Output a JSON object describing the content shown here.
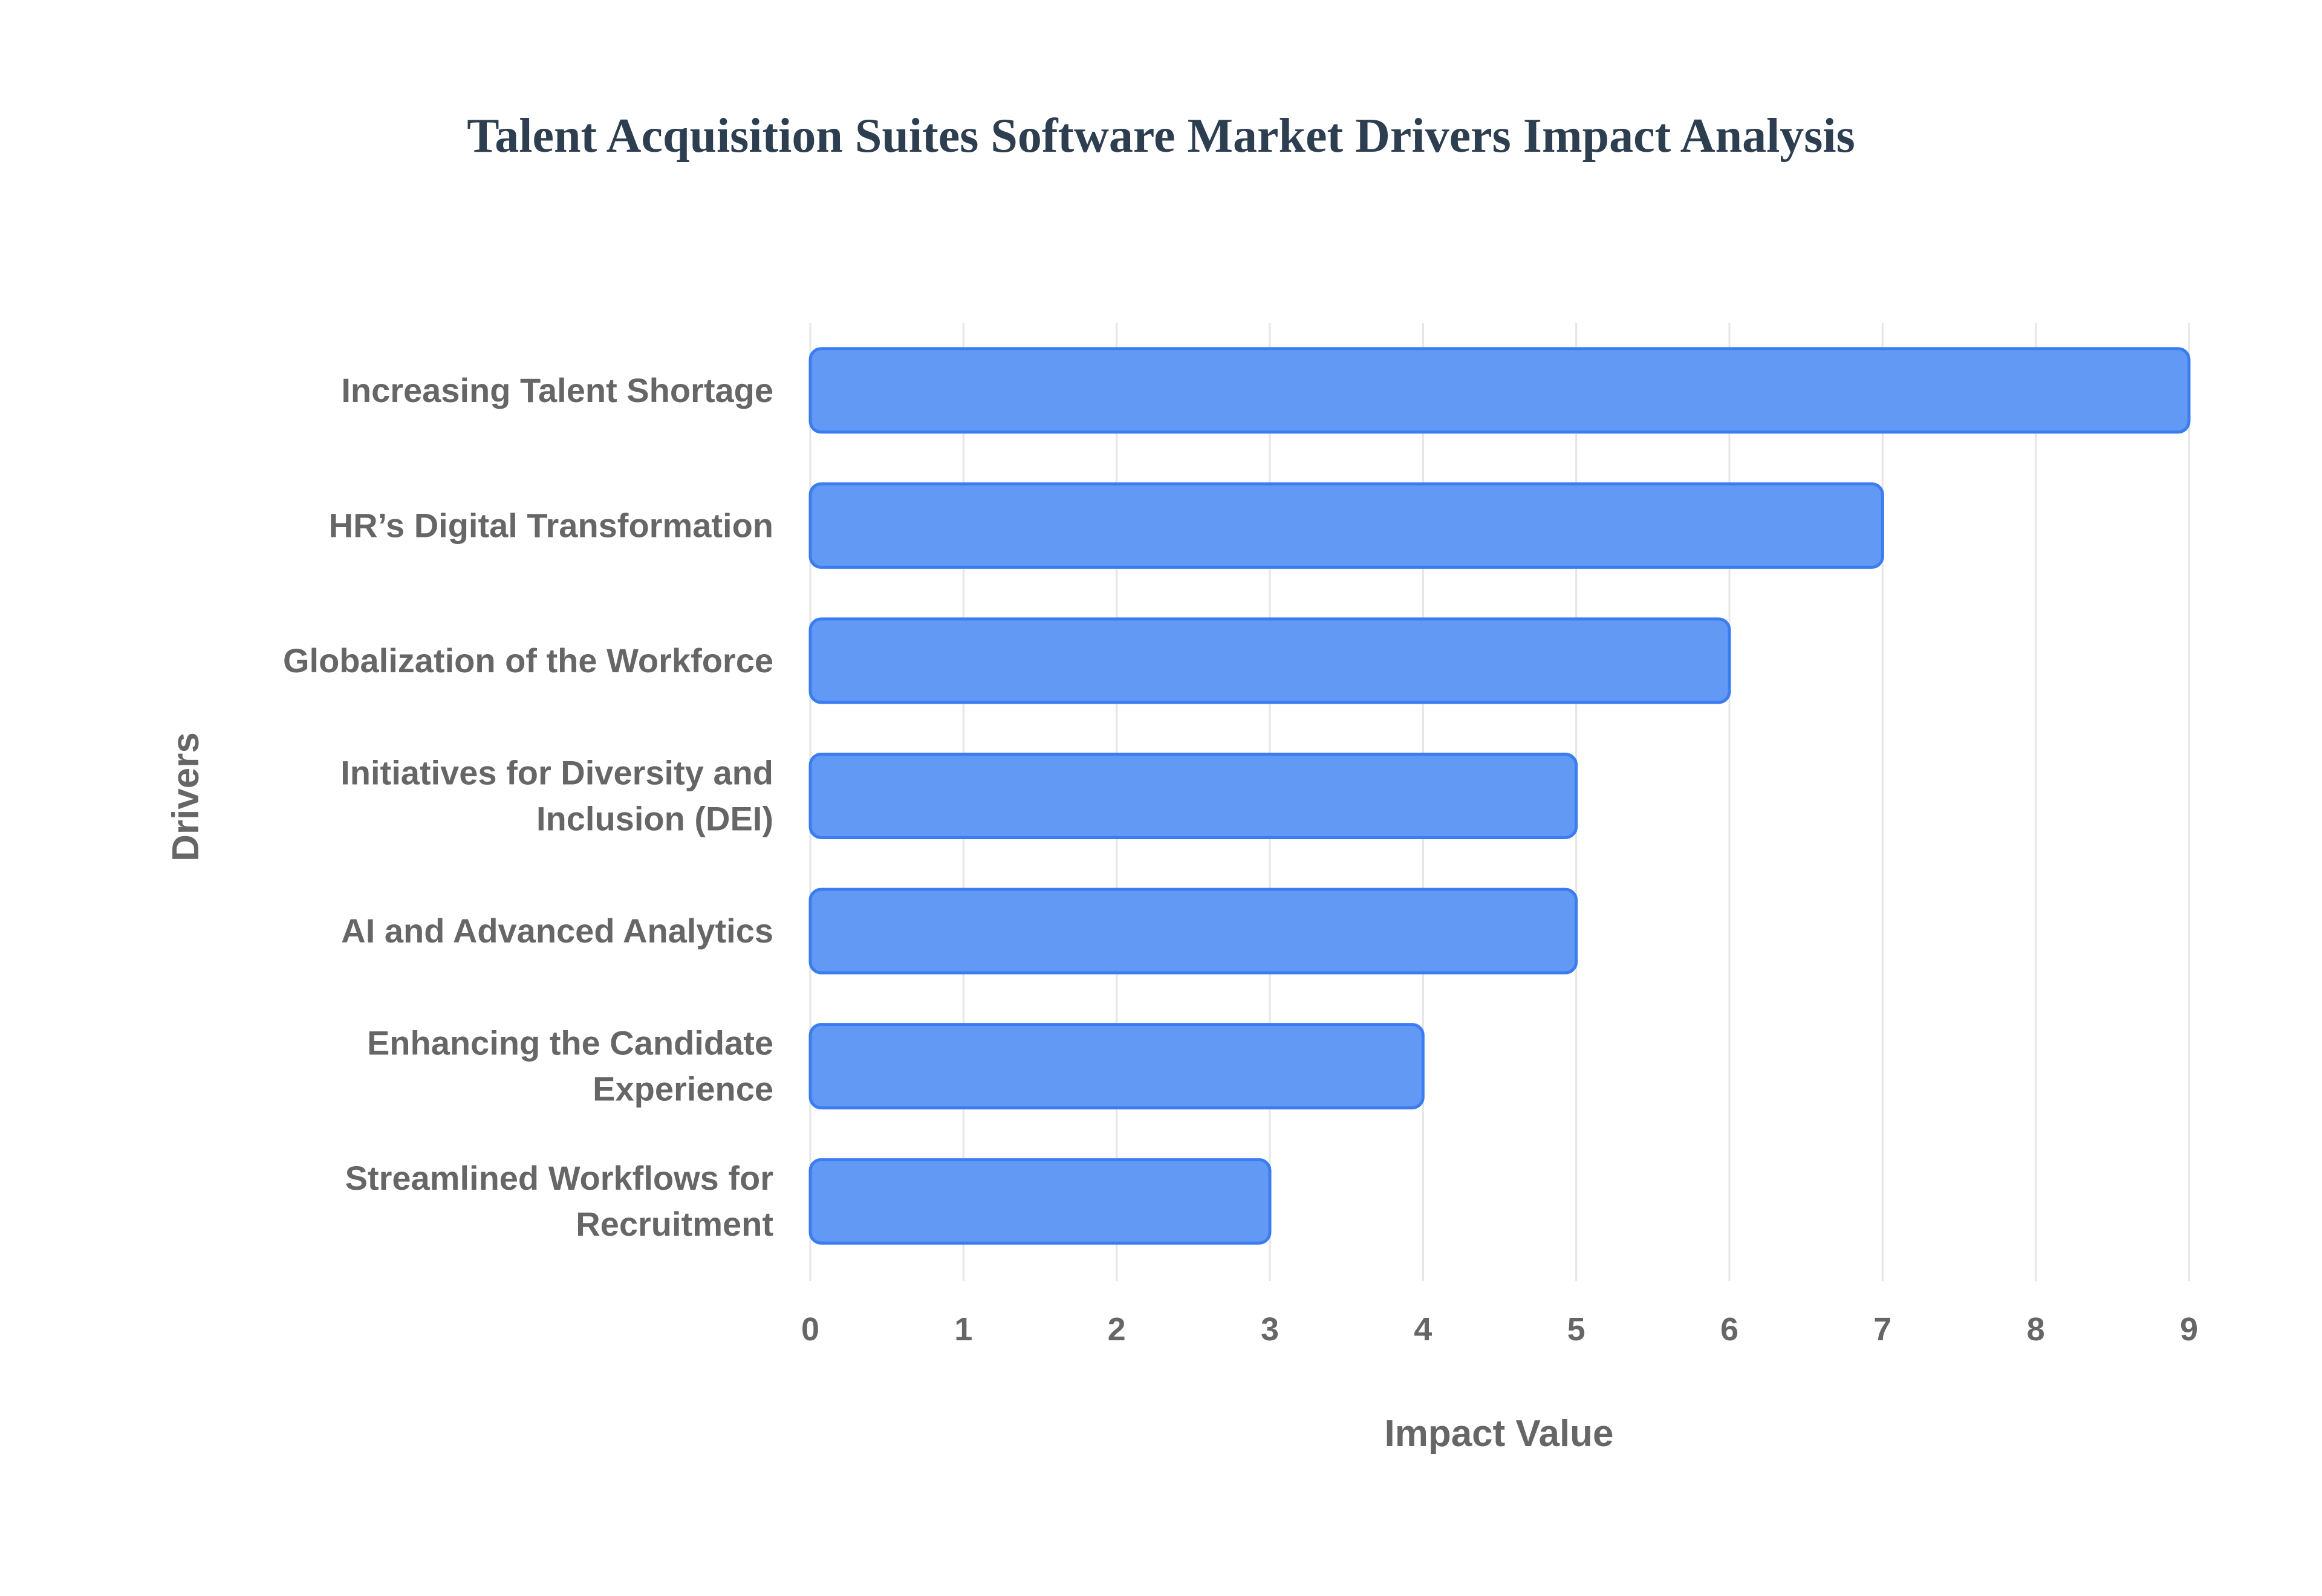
{
  "chart_data": {
    "type": "bar",
    "orientation": "horizontal",
    "title": "Talent Acquisition Suites Software Market Drivers Impact Analysis",
    "xlabel": "Impact Value",
    "ylabel": "Drivers",
    "categories": [
      [
        "Increasing Talent Shortage"
      ],
      [
        "HR’s Digital Transformation"
      ],
      [
        "Globalization of the Workforce"
      ],
      [
        "Initiatives for Diversity and",
        "Inclusion (DEI)"
      ],
      [
        "AI and Advanced Analytics"
      ],
      [
        "Enhancing the Candidate",
        "Experience"
      ],
      [
        "Streamlined Workflows for",
        "Recruitment"
      ]
    ],
    "values": [
      9,
      7,
      6,
      5,
      5,
      4,
      3
    ],
    "xlim": [
      0,
      9
    ],
    "xticks": [
      "0",
      "1",
      "2",
      "3",
      "4",
      "5",
      "6",
      "7",
      "8",
      "9"
    ],
    "grid": true,
    "colors": {
      "fill": "#6199F5",
      "stroke": "#3B7DF0",
      "grid": "#e5e5e5",
      "text": "#666666",
      "title": "#2c3e50"
    }
  }
}
